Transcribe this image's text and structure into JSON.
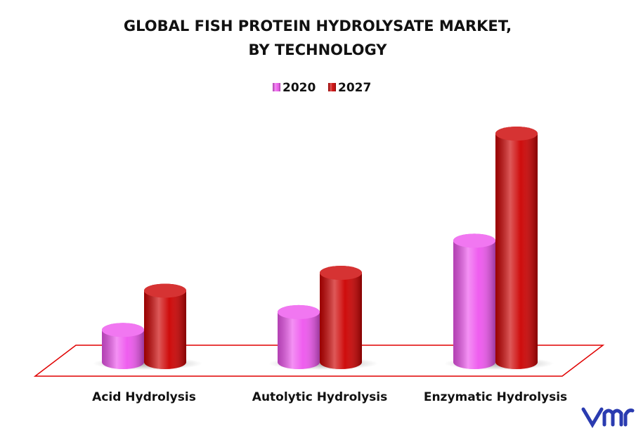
{
  "chart_data": {
    "type": "cylinder-bar",
    "title": "GLOBAL FISH PROTEIN HYDROLYSATE MARKET,",
    "subtitle": "BY TECHNOLOGY",
    "categories": [
      "Acid Hydrolysis",
      "Autolytic Hydrolysis",
      "Enzymatic Hydrolysis"
    ],
    "series": [
      {
        "name": "2020",
        "color": "#ee55ee",
        "values": [
          45,
          70,
          170
        ]
      },
      {
        "name": "2027",
        "color": "#cc0000",
        "values": [
          100,
          125,
          320
        ]
      }
    ],
    "legend": "top"
  }
}
